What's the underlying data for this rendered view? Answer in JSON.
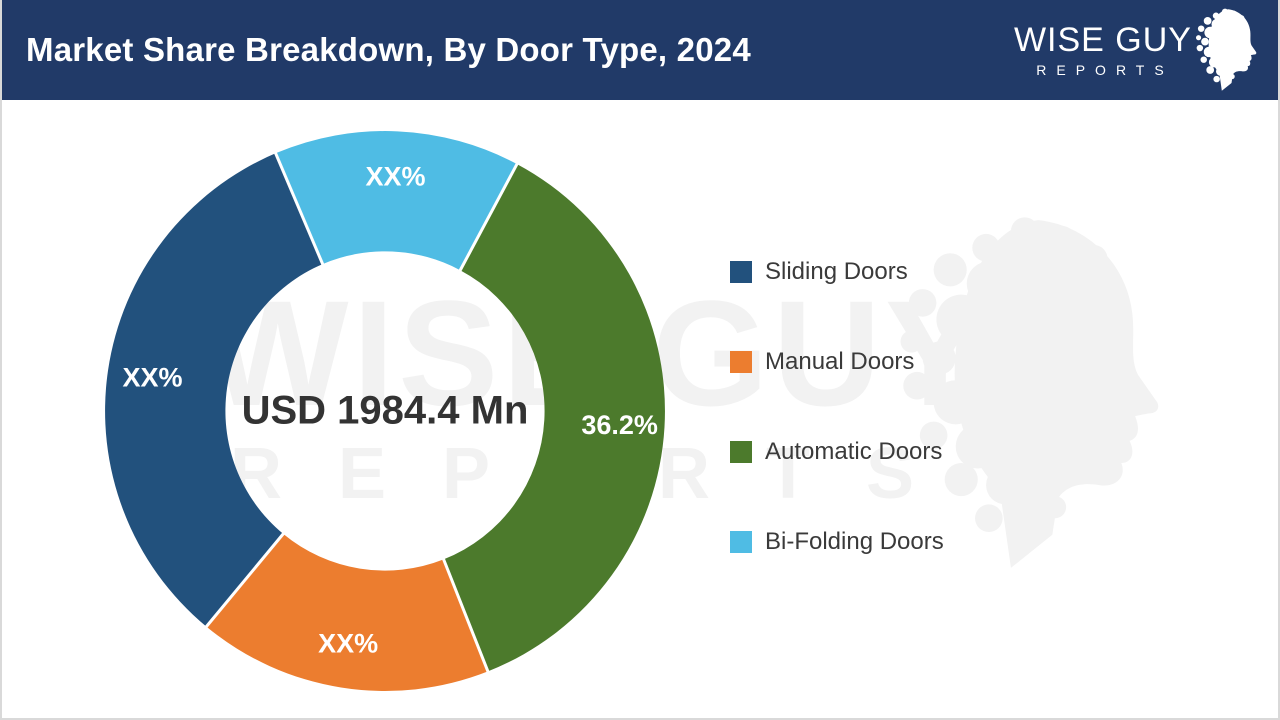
{
  "header": {
    "title": "Market Share Breakdown, By Door Type, 2024",
    "bg_color": "#213a68",
    "logo": {
      "line1": "WISE GUY",
      "line2": "REPORTS"
    }
  },
  "watermark": {
    "line1": "WISE GUY",
    "line2": "REPORTS"
  },
  "chart_data": {
    "type": "pie",
    "subtype": "donut",
    "title": "Market Share Breakdown, By Door Type, 2024",
    "center_label": "USD 1984.4 Mn",
    "legend_position": "right",
    "inner_radius_ratio": 0.57,
    "start_angle_deg": -23,
    "rotation": "clockwise",
    "draw_order_clockwise_from_top": [
      "Bi-Folding Doors",
      "Automatic Doors",
      "Manual Doors",
      "Sliding Doors"
    ],
    "segments": [
      {
        "label": "Sliding Doors",
        "display_value": "XX%",
        "share_pct_est": 32.6,
        "color": "#22517d"
      },
      {
        "label": "Manual Doors",
        "display_value": "XX%",
        "share_pct_est": 17.0,
        "color": "#ec7d2f"
      },
      {
        "label": "Automatic Doors",
        "display_value": "36.2%",
        "share_pct_est": 36.2,
        "color": "#4c7a2c"
      },
      {
        "label": "Bi-Folding Doors",
        "display_value": "XX%",
        "share_pct_est": 14.2,
        "color": "#4fbce4"
      }
    ]
  }
}
